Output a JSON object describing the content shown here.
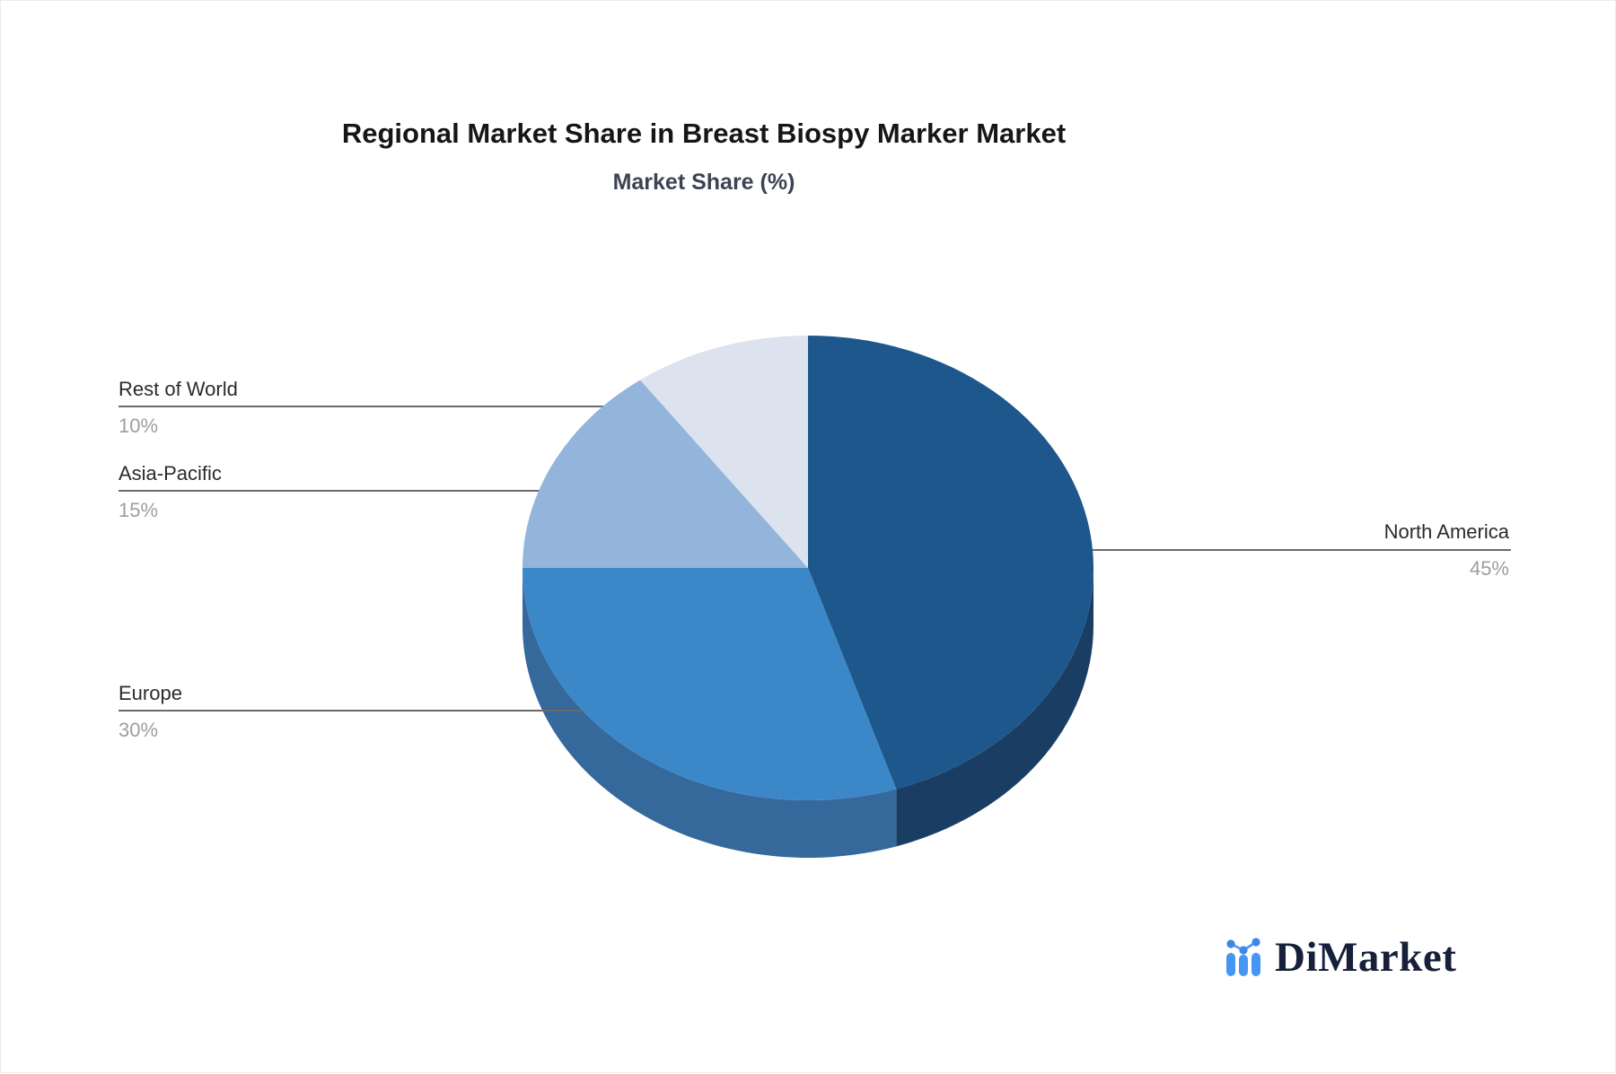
{
  "header": {
    "title": "Regional Market Share in Breast Biospy Marker Market",
    "subtitle": "Market Share (%)"
  },
  "chart_data": {
    "type": "pie",
    "title": "Regional Market Share in Breast Biospy Marker Market",
    "subtitle": "Market Share (%)",
    "unit": "%",
    "effect": "3d",
    "start_angle_deg": 0,
    "direction": "clockwise",
    "legend_position": "none",
    "labels_style": "callout-leader-lines",
    "slices": [
      {
        "label": "North America",
        "value": 45,
        "display": "45%",
        "color": "#1e578c",
        "side_color": "#1a3e63"
      },
      {
        "label": "Europe",
        "value": 30,
        "display": "30%",
        "color": "#3b87c8",
        "side_color": "#35689b"
      },
      {
        "label": "Asia-Pacific",
        "value": 15,
        "display": "15%",
        "color": "#93b5db",
        "side_color": "#6d8cb0"
      },
      {
        "label": "Rest of World",
        "value": 10,
        "display": "10%",
        "color": "#dce3ee",
        "side_color": "#b9c3d4"
      }
    ],
    "label_name_color": "#2b2b2b",
    "label_value_color": "#9e9e9e",
    "leader_line_color": "#6b6b6b",
    "leader_dot_color": "#5d5d5d"
  },
  "logo": {
    "text": "DiMarket",
    "icon": "bar-line-chart-icon",
    "text_color": "#16203a",
    "icon_color": "#4796f3"
  }
}
